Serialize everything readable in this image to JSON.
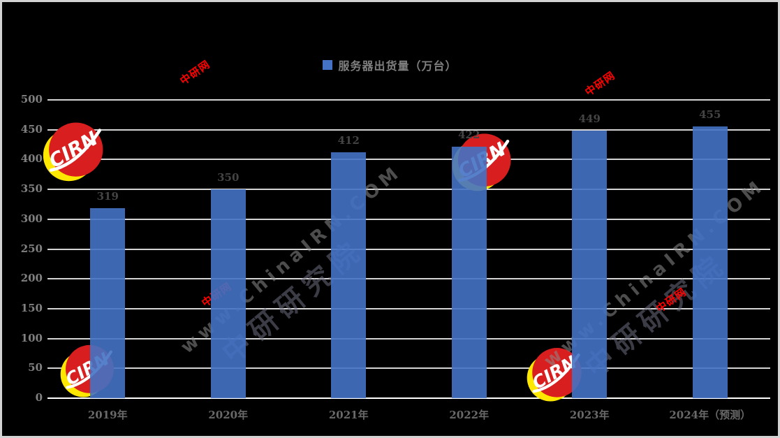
{
  "legend": {
    "label": "服务器出货量（万台）"
  },
  "chart_data": {
    "type": "bar",
    "title": "",
    "categories": [
      "2019年",
      "2020年",
      "2021年",
      "2022年",
      "2023年",
      "2024年（预测）"
    ],
    "values": [
      319,
      350,
      412,
      422,
      449,
      455
    ],
    "series_name": "服务器出货量（万台）",
    "xlabel": "",
    "ylabel": "",
    "ylim": [
      0,
      500
    ],
    "y_ticks": [
      0,
      50,
      100,
      150,
      200,
      250,
      300,
      350,
      400,
      450,
      500
    ],
    "grid": true,
    "legend_position": "top",
    "bar_color": "#4472C4",
    "background_color": "#000000",
    "gridline_color": "#ebebeb"
  },
  "watermarks": {
    "site_line": "www.ChinaIRN.COM",
    "cn_line": "中研研究院",
    "stamp_text": "中研网",
    "logo_text": "CIRN"
  }
}
